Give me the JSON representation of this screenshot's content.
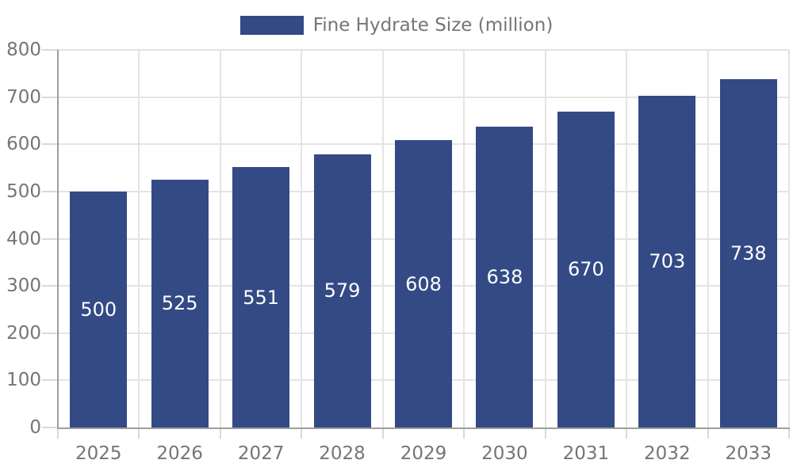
{
  "legend": {
    "label": "Fine Hydrate Size (million)"
  },
  "colors": {
    "bar": "#344a85",
    "axis_line": "#9e9e9e",
    "grid_line": "#e4e4e4",
    "tick_line": "#d9d9d9",
    "axis_text": "#757575",
    "bar_label_text": "#ffffff"
  },
  "chart_data": {
    "type": "bar",
    "title": "",
    "categories": [
      "2025",
      "2026",
      "2027",
      "2028",
      "2029",
      "2030",
      "2031",
      "2032",
      "2033"
    ],
    "series": [
      {
        "name": "Fine Hydrate Size (million)",
        "values": [
          500,
          525,
          551,
          579,
          608,
          638,
          670,
          703,
          738
        ]
      }
    ],
    "xlabel": "",
    "ylabel": "",
    "ylim": [
      0,
      800
    ],
    "ytick_step": 100,
    "grid": true,
    "legend_position": "top",
    "bar_value_labels": "inside-center"
  }
}
